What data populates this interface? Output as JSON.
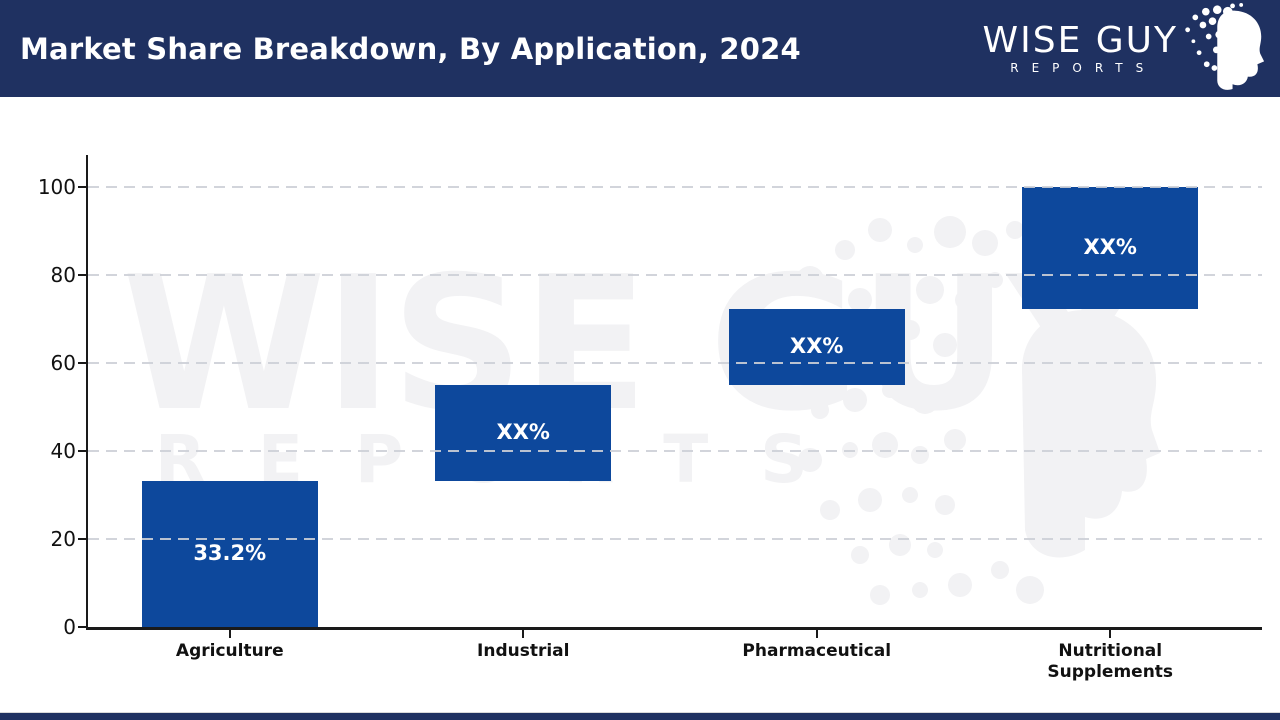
{
  "header": {
    "title": "Market Share Breakdown, By Application, 2024",
    "logo": {
      "brand_top": "WISE GUY",
      "brand_bottom": "REPORTS"
    }
  },
  "watermark": {
    "line1": "WISE GUY",
    "line2": "REPORTS"
  },
  "chart_data": {
    "type": "bar",
    "subtype": "floating-waterfall-segments",
    "title": "Market Share Breakdown, By Application, 2024",
    "categories": [
      "Agriculture",
      "Industrial",
      "Pharmaceutical",
      "Nutritional Supplements"
    ],
    "segments": [
      {
        "start": 0,
        "end": 33.2,
        "label": "33.2%"
      },
      {
        "start": 33.2,
        "end": 55.0,
        "label": "XX%"
      },
      {
        "start": 55.0,
        "end": 72.3,
        "label": "XX%"
      },
      {
        "start": 72.3,
        "end": 100.0,
        "label": "XX%"
      }
    ],
    "ylim": [
      0,
      100
    ],
    "yticks": [
      0,
      20,
      40,
      60,
      80,
      100
    ],
    "grid": "horizontal-dashed, drawn over bars",
    "legend": "none",
    "bar_color": "#0d489c",
    "value_label_color": "#ffffff",
    "axis_color": "#1a1a1a",
    "header_color": "#1f3161",
    "watermark_color": "#f2f2f4"
  }
}
